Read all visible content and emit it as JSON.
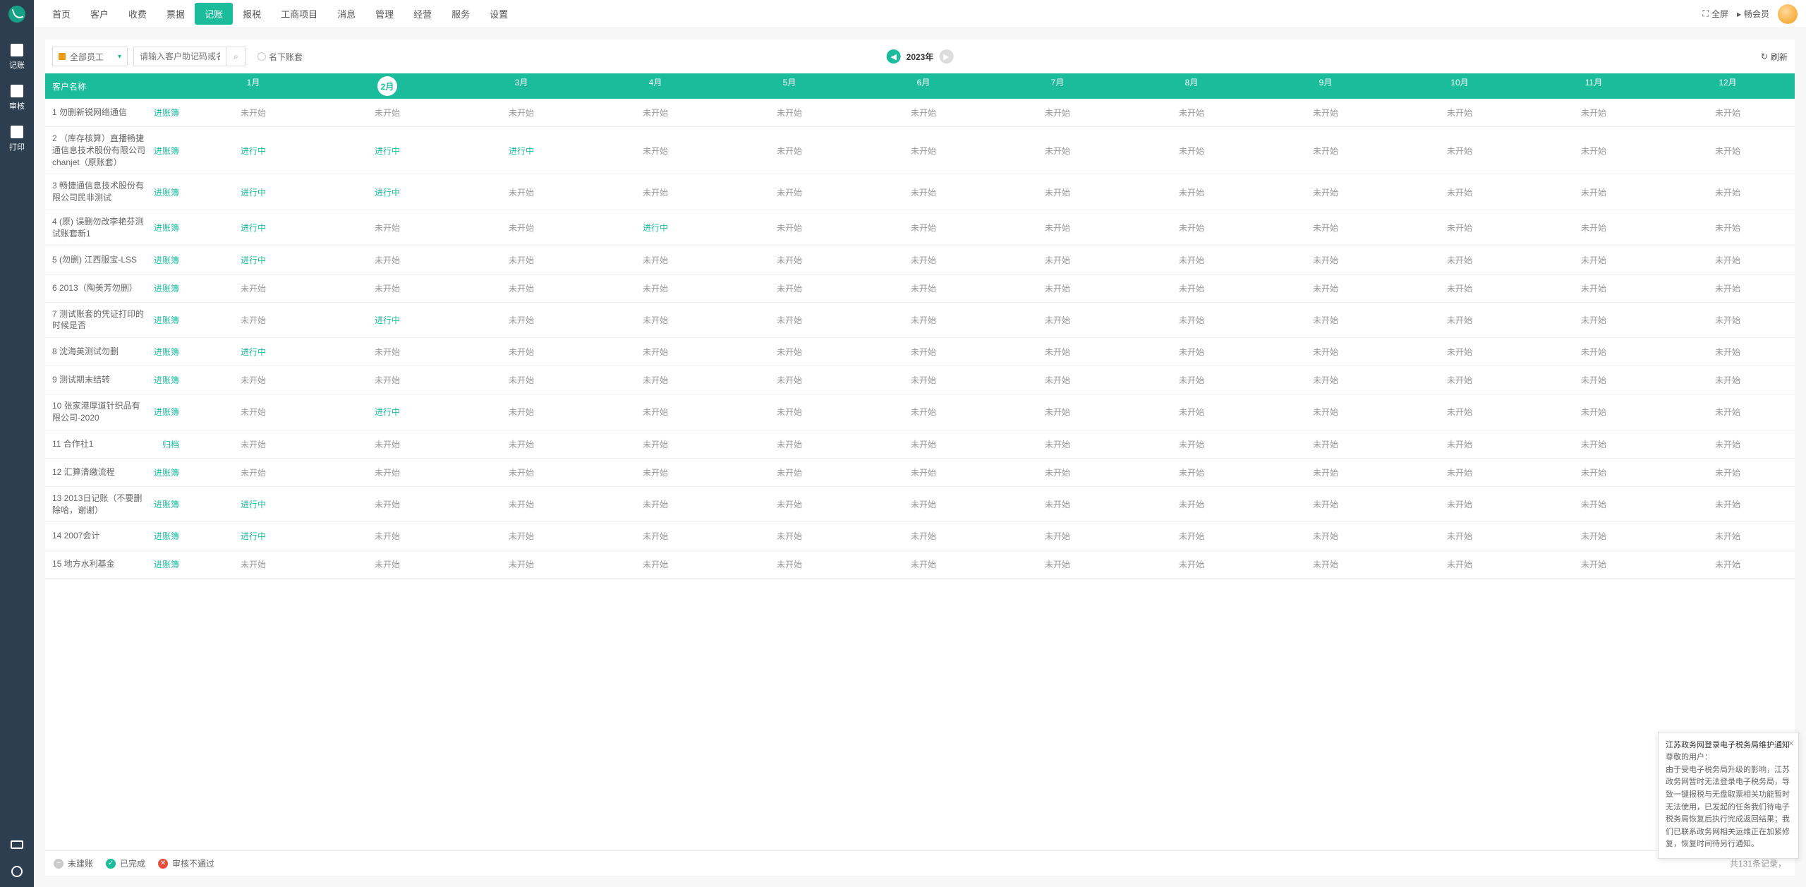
{
  "colors": {
    "primary": "#1abc9c",
    "sidebar": "#2c3e50",
    "muted": "#999",
    "border": "#eee",
    "bg": "#f7f7f7"
  },
  "sidebar": {
    "items": [
      {
        "label": "记账",
        "icon": "ledger-icon"
      },
      {
        "label": "审核",
        "icon": "review-icon"
      },
      {
        "label": "打印",
        "icon": "print-icon"
      }
    ]
  },
  "topnav": {
    "tabs": [
      "首页",
      "客户",
      "收费",
      "票据",
      "记账",
      "报税",
      "工商项目",
      "消息",
      "管理",
      "经营",
      "服务",
      "设置"
    ],
    "active_index": 4,
    "fullscreen": "全屏",
    "member": "畅会员"
  },
  "toolbar": {
    "employee_select": "全部员工",
    "search_placeholder": "请输入客户助记码或名称",
    "radio_label": "名下账套",
    "year": "2023年",
    "refresh": "刷新"
  },
  "table": {
    "name_header": "客户名称",
    "months": [
      "1月",
      "2月",
      "3月",
      "4月",
      "5月",
      "6月",
      "7月",
      "8月",
      "9月",
      "10月",
      "11月",
      "12月"
    ],
    "active_month_index": 1,
    "status_not_started": "未开始",
    "status_in_progress": "进行中",
    "ledger_link": "进账簿",
    "archive_link": "归档",
    "rows": [
      {
        "idx": 1,
        "name": "勿删新锐网络通信",
        "link": "ledger",
        "cells": [
          "未开始",
          "未开始",
          "未开始",
          "未开始",
          "未开始",
          "未开始",
          "未开始",
          "未开始",
          "未开始",
          "未开始",
          "未开始",
          "未开始"
        ]
      },
      {
        "idx": 2,
        "name": "（库存核算）直播畅捷通信息技术股份有限公司chanjet（原账套）",
        "link": "ledger",
        "cells": [
          "进行中",
          "进行中",
          "进行中",
          "未开始",
          "未开始",
          "未开始",
          "未开始",
          "未开始",
          "未开始",
          "未开始",
          "未开始",
          "未开始"
        ]
      },
      {
        "idx": 3,
        "name": "畅捷通信息技术股份有限公司民非测试",
        "link": "ledger",
        "cells": [
          "进行中",
          "进行中",
          "未开始",
          "未开始",
          "未开始",
          "未开始",
          "未开始",
          "未开始",
          "未开始",
          "未开始",
          "未开始",
          "未开始"
        ]
      },
      {
        "idx": 4,
        "name": "(原) 误删勿改李艳芬测试账套新1",
        "link": "ledger",
        "cells": [
          "进行中",
          "未开始",
          "未开始",
          "进行中",
          "未开始",
          "未开始",
          "未开始",
          "未开始",
          "未开始",
          "未开始",
          "未开始",
          "未开始"
        ]
      },
      {
        "idx": 5,
        "name": "(勿删) 江西服宝-LSS",
        "link": "ledger",
        "cells": [
          "进行中",
          "未开始",
          "未开始",
          "未开始",
          "未开始",
          "未开始",
          "未开始",
          "未开始",
          "未开始",
          "未开始",
          "未开始",
          "未开始"
        ]
      },
      {
        "idx": 6,
        "name": "2013（陶美芳勿删）",
        "link": "ledger",
        "cells": [
          "未开始",
          "未开始",
          "未开始",
          "未开始",
          "未开始",
          "未开始",
          "未开始",
          "未开始",
          "未开始",
          "未开始",
          "未开始",
          "未开始"
        ]
      },
      {
        "idx": 7,
        "name": "测试账套的凭证打印的时候是否",
        "link": "ledger",
        "cells": [
          "未开始",
          "进行中",
          "未开始",
          "未开始",
          "未开始",
          "未开始",
          "未开始",
          "未开始",
          "未开始",
          "未开始",
          "未开始",
          "未开始"
        ]
      },
      {
        "idx": 8,
        "name": "沈海英测试勿删",
        "link": "ledger",
        "cells": [
          "进行中",
          "未开始",
          "未开始",
          "未开始",
          "未开始",
          "未开始",
          "未开始",
          "未开始",
          "未开始",
          "未开始",
          "未开始",
          "未开始"
        ]
      },
      {
        "idx": 9,
        "name": "测试期末结转",
        "link": "ledger",
        "cells": [
          "未开始",
          "未开始",
          "未开始",
          "未开始",
          "未开始",
          "未开始",
          "未开始",
          "未开始",
          "未开始",
          "未开始",
          "未开始",
          "未开始"
        ]
      },
      {
        "idx": 10,
        "name": "张家港厚道针织品有限公司-2020",
        "link": "ledger",
        "cells": [
          "未开始",
          "进行中",
          "未开始",
          "未开始",
          "未开始",
          "未开始",
          "未开始",
          "未开始",
          "未开始",
          "未开始",
          "未开始",
          "未开始"
        ]
      },
      {
        "idx": 11,
        "name": "合作社1",
        "link": "archive",
        "cells": [
          "未开始",
          "未开始",
          "未开始",
          "未开始",
          "未开始",
          "未开始",
          "未开始",
          "未开始",
          "未开始",
          "未开始",
          "未开始",
          "未开始"
        ]
      },
      {
        "idx": 12,
        "name": "汇算清缴流程",
        "link": "ledger",
        "cells": [
          "未开始",
          "未开始",
          "未开始",
          "未开始",
          "未开始",
          "未开始",
          "未开始",
          "未开始",
          "未开始",
          "未开始",
          "未开始",
          "未开始"
        ]
      },
      {
        "idx": 13,
        "name": "2013日记账（不要删除哈，谢谢）",
        "link": "ledger",
        "cells": [
          "进行中",
          "未开始",
          "未开始",
          "未开始",
          "未开始",
          "未开始",
          "未开始",
          "未开始",
          "未开始",
          "未开始",
          "未开始",
          "未开始"
        ]
      },
      {
        "idx": 14,
        "name": "2007会计",
        "link": "ledger",
        "cells": [
          "进行中",
          "未开始",
          "未开始",
          "未开始",
          "未开始",
          "未开始",
          "未开始",
          "未开始",
          "未开始",
          "未开始",
          "未开始",
          "未开始"
        ]
      },
      {
        "idx": 15,
        "name": "地方水利基金",
        "link": "ledger",
        "cells": [
          "未开始",
          "未开始",
          "未开始",
          "未开始",
          "未开始",
          "未开始",
          "未开始",
          "未开始",
          "未开始",
          "未开始",
          "未开始",
          "未开始"
        ]
      }
    ]
  },
  "footer": {
    "legend_not_created": "未建账",
    "legend_done": "已完成",
    "legend_rejected": "审核不通过",
    "record_count": "共131条记录，"
  },
  "notification": {
    "title": "江苏政务网登录电子税务局维护通知",
    "greeting": "尊敬的用户：",
    "body": "由于受电子税务局升级的影响，江苏政务网暂时无法登录电子税务局，导致一键报税与无盘取票相关功能暂时无法使用，已发起的任务我们待电子税务局恢复后执行完成返回结果；我们已联系政务网相关运维正在加紧修复，恢复时间待另行通知。"
  }
}
